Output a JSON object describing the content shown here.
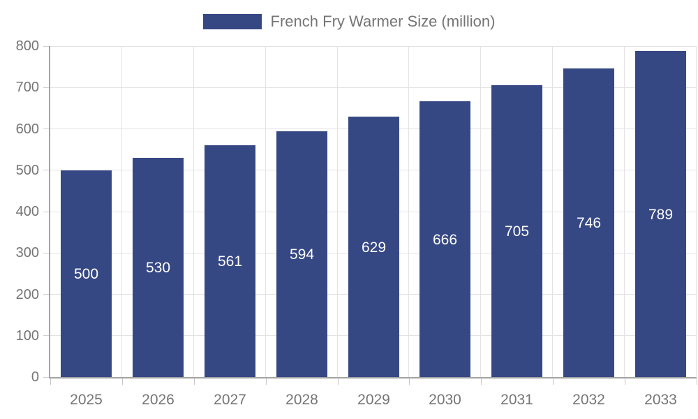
{
  "chart_data": {
    "type": "bar",
    "title": "",
    "legend": "French Fry Warmer Size (million)",
    "legend_position": "top-center",
    "categories": [
      "2025",
      "2026",
      "2027",
      "2028",
      "2029",
      "2030",
      "2031",
      "2032",
      "2033"
    ],
    "values": [
      500,
      530,
      561,
      594,
      629,
      666,
      705,
      746,
      789
    ],
    "xlabel": "",
    "ylabel": "",
    "ylim": [
      0,
      800
    ],
    "ytick_interval": 100,
    "yticks": [
      0,
      100,
      200,
      300,
      400,
      500,
      600,
      700,
      800
    ],
    "grid": true,
    "colors": {
      "bar": "#364884",
      "bar_label": "#ffffff",
      "axis_line": "#a3a3a3",
      "gridline": "#e3e3e3",
      "tick": "#cccccc",
      "text": "#757575"
    }
  }
}
